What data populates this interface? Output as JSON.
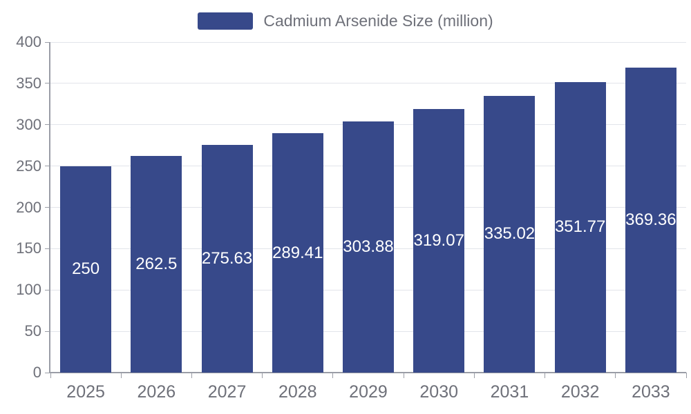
{
  "legend": {
    "label": "Cadmium Arsenide Size (million)",
    "swatch_color": "#37498a"
  },
  "chart_data": {
    "type": "bar",
    "title": "Cadmium Arsenide Size (million)",
    "categories": [
      "2025",
      "2026",
      "2027",
      "2028",
      "2029",
      "2030",
      "2031",
      "2032",
      "2033"
    ],
    "values": [
      250,
      262.5,
      275.63,
      289.41,
      303.88,
      319.07,
      335.02,
      351.77,
      369.36
    ],
    "value_labels": [
      "250",
      "262.5",
      "275.63",
      "289.41",
      "303.88",
      "319.07",
      "335.02",
      "351.77",
      "369.36"
    ],
    "xlabel": "",
    "ylabel": "",
    "ylim": [
      0,
      400
    ],
    "yticks": [
      0,
      50,
      100,
      150,
      200,
      250,
      300,
      350,
      400
    ],
    "grid": true,
    "legend_position": "top-center",
    "colors": {
      "bar": "#37498a",
      "bar_value_label": "#ffffff",
      "axis_text": "#6e7079",
      "axis_line": "#9a9da6",
      "gridline": "#e2e4ea",
      "background": "#ffffff"
    }
  }
}
